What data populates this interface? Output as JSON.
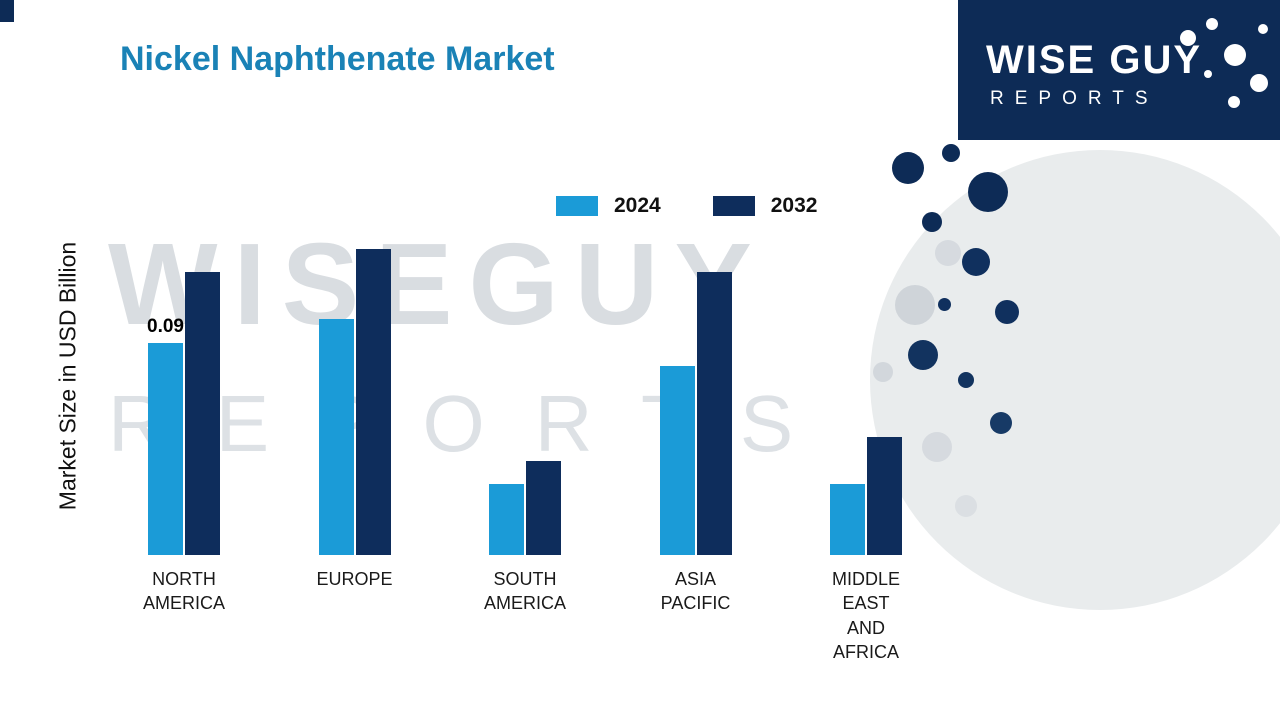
{
  "title": "Nickel Naphthenate Market",
  "y_axis_label": "Market Size in USD Billion",
  "watermark": {
    "line1": "WISEGUY",
    "line2": "REPORTS"
  },
  "logo": {
    "line1": "WISE GUY",
    "line2": "REPORTS"
  },
  "colors": {
    "title": "#1a82b6",
    "logo_bg": "#0d2b56",
    "series_2024": "#1b9bd7",
    "series_2032": "#0e2d5c"
  },
  "chart_data": {
    "type": "bar",
    "title": "Nickel Naphthenate Market",
    "xlabel": "",
    "ylabel": "Market Size in USD Billion",
    "unit": "USD Billion",
    "categories": [
      "NORTH AMERICA",
      "EUROPE",
      "SOUTH AMERICA",
      "ASIA PACIFIC",
      "MIDDLE EAST AND AFRICA"
    ],
    "category_lines": [
      [
        "NORTH",
        "AMERICA"
      ],
      [
        "EUROPE"
      ],
      [
        "SOUTH",
        "AMERICA"
      ],
      [
        "ASIA",
        "PACIFIC"
      ],
      [
        "MIDDLE",
        "EAST",
        "AND",
        "AFRICA"
      ]
    ],
    "series": [
      {
        "name": "2024",
        "color": "#1b9bd7",
        "values": [
          0.09,
          0.1,
          0.03,
          0.08,
          0.03
        ]
      },
      {
        "name": "2032",
        "color": "#0e2d5c",
        "values": [
          0.12,
          0.13,
          0.04,
          0.12,
          0.05
        ]
      }
    ],
    "bar_labels": [
      {
        "series_index": 0,
        "category_index": 0,
        "text": "0.09"
      }
    ],
    "ylim": [
      0,
      0.14
    ],
    "grid": false,
    "legend_position": "top-center"
  }
}
